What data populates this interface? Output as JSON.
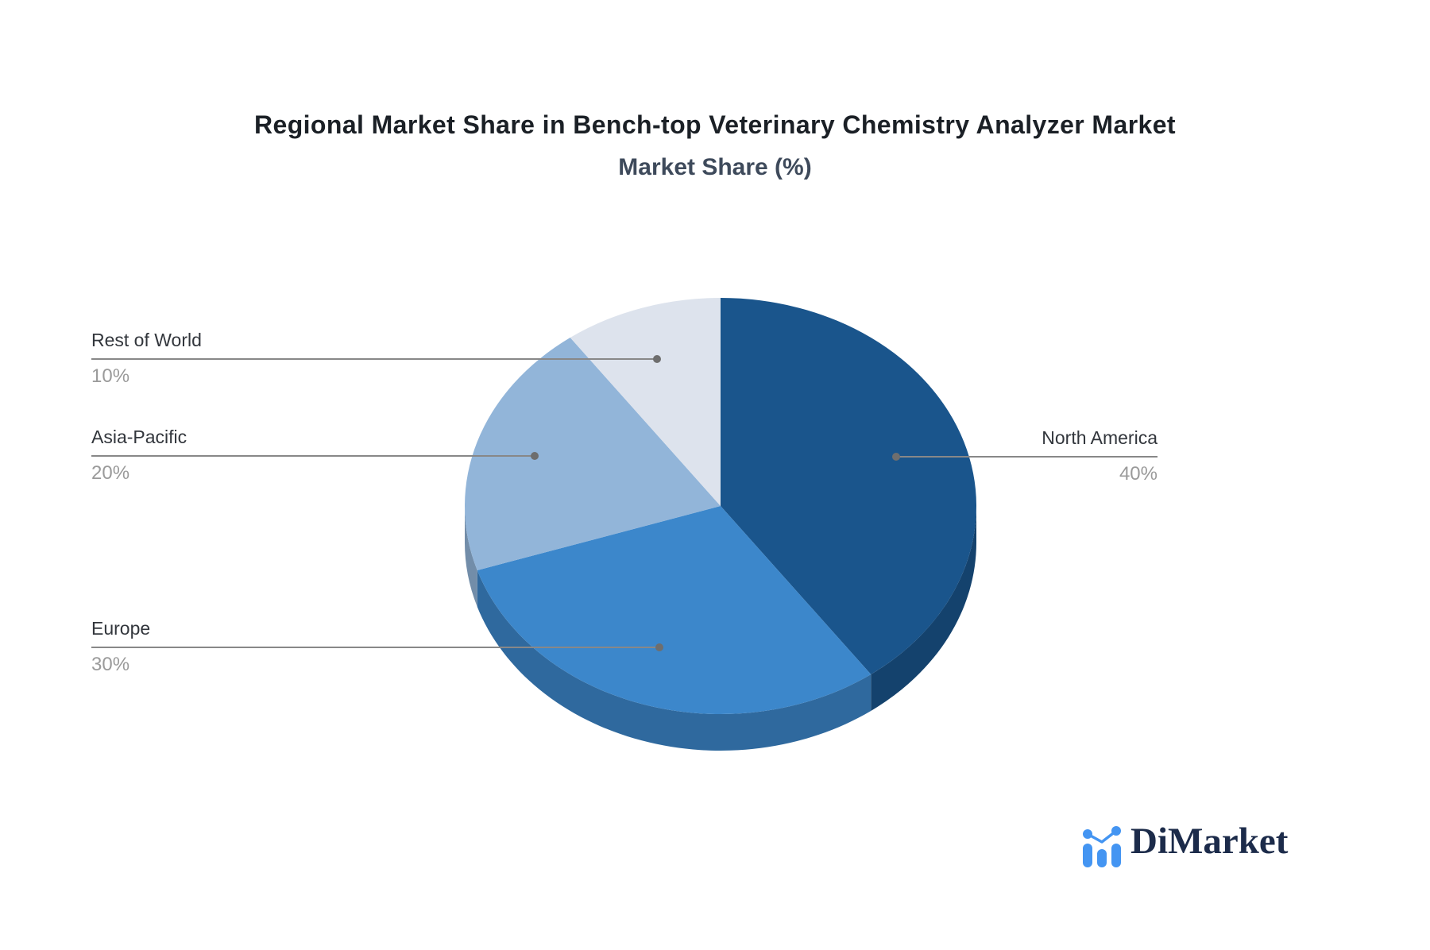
{
  "title": "Regional Market Share in Bench-top Veterinary Chemistry Analyzer Market",
  "subtitle": "Market Share (%)",
  "brand": {
    "name": "DiMarket",
    "icon": "bar-line-chart-icon"
  },
  "colors": {
    "background": "#FFFFFF",
    "title": "#1B2026",
    "subtitle": "#3E4A5B",
    "label": "#32363C",
    "value": "#9A9A9A",
    "leader_line": "#888888",
    "leader_dot": "#6E6E6E",
    "brand_text": "#1C2B4A",
    "brand_accent": "#4495F2"
  },
  "chart_data": {
    "type": "pie",
    "style": "3d",
    "title": "Regional Market Share in Bench-top Veterinary Chemistry Analyzer Market",
    "subtitle": "Market Share (%)",
    "unit": "%",
    "direction": "clockwise",
    "start_angle": "12-o'clock",
    "legend_position": "leader-line-labels",
    "slices": [
      {
        "label": "North America",
        "value": 40,
        "display": "40%",
        "color": "#1A558C"
      },
      {
        "label": "Europe",
        "value": 30,
        "display": "30%",
        "color": "#3C87CB"
      },
      {
        "label": "Asia-Pacific",
        "value": 20,
        "display": "20%",
        "color": "#92B5D9"
      },
      {
        "label": "Rest of World",
        "value": 10,
        "display": "10%",
        "color": "#DDE3ED"
      }
    ]
  }
}
